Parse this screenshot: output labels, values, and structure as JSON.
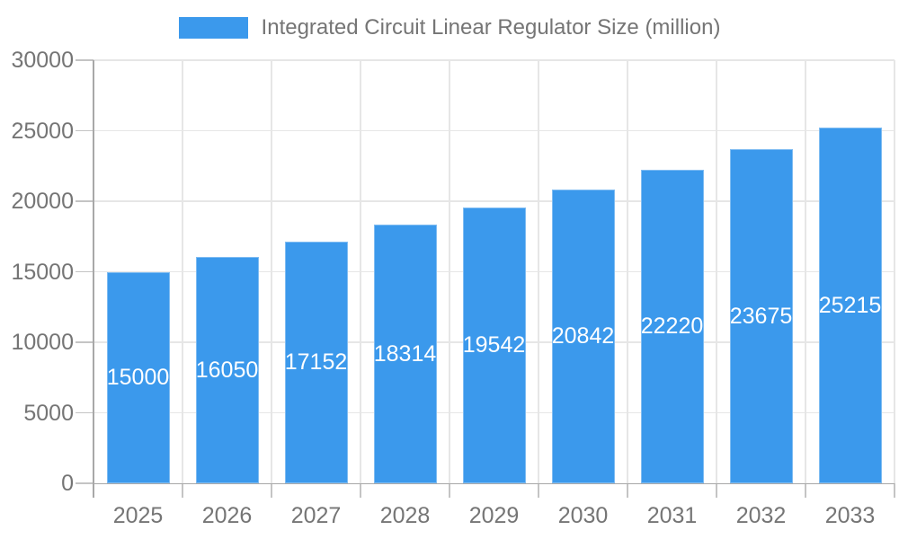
{
  "chart_data": {
    "type": "bar",
    "title": "Integrated Circuit Linear Regulator Size (million)",
    "categories": [
      "2025",
      "2026",
      "2027",
      "2028",
      "2029",
      "2030",
      "2031",
      "2032",
      "2033"
    ],
    "values": [
      15000,
      16050,
      17152,
      18314,
      19542,
      20842,
      22220,
      23675,
      25215
    ],
    "xlabel": "",
    "ylabel": "",
    "ylim": [
      0,
      30000
    ],
    "yticks": [
      0,
      5000,
      10000,
      15000,
      20000,
      25000,
      30000
    ],
    "grid": "both",
    "legend_position": "top",
    "bar_labels_inside": true,
    "colors": {
      "bar": "#3B99EC",
      "bar_label": "#FFFFFF",
      "gridline": "#E6E6E6",
      "axis_line": "#A8A8A8",
      "tick": "#C4C4C4",
      "axis_text": "#757575",
      "background": "#FFFFFF"
    }
  }
}
